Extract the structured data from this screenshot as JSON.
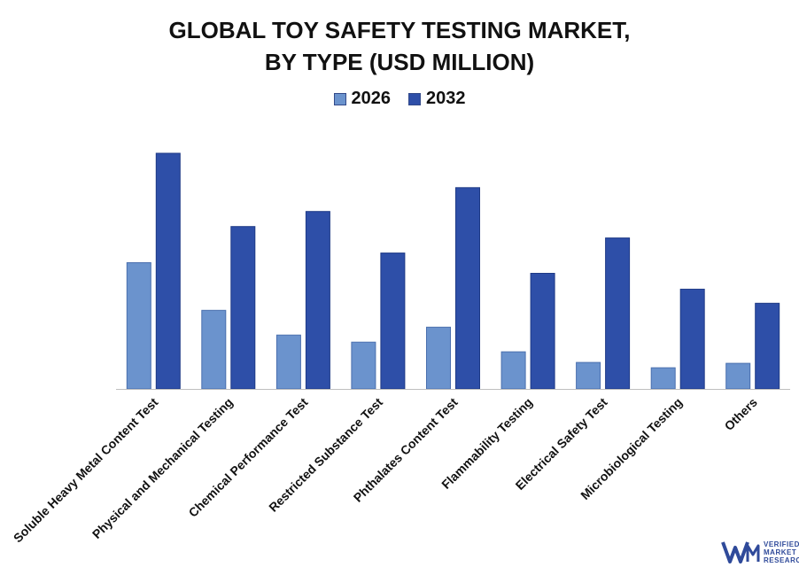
{
  "chart_data": {
    "type": "bar",
    "title_lines": [
      "GLOBAL TOY SAFETY TESTING MARKET,",
      "BY TYPE (USD MILLION)"
    ],
    "categories": [
      "Soluble Heavy Metal Content Test",
      "Physical and Mechanical Testing",
      "Chemical Performance Test",
      "Restricted Substance Test",
      "Phthalates Content Test",
      "Flammability Testing",
      "Electrical Safety Test",
      "Microbiological Testing",
      "Others"
    ],
    "series": [
      {
        "name": "2026",
        "color": "#6b93cd",
        "values": [
          143,
          89,
          61,
          53,
          70,
          42,
          30,
          24,
          29
        ]
      },
      {
        "name": "2032",
        "color": "#2e4fa8",
        "values": [
          267,
          184,
          201,
          154,
          228,
          131,
          171,
          113,
          97
        ]
      }
    ],
    "ylim": [
      0,
      280
    ],
    "grid": false,
    "legend_position": "top-center",
    "xlabel": "",
    "ylabel": ""
  },
  "logo": {
    "brand_lines": [
      "VERIFIED",
      "MARKET",
      "RESEARCH"
    ],
    "mark_color": "#2f4a9a"
  }
}
